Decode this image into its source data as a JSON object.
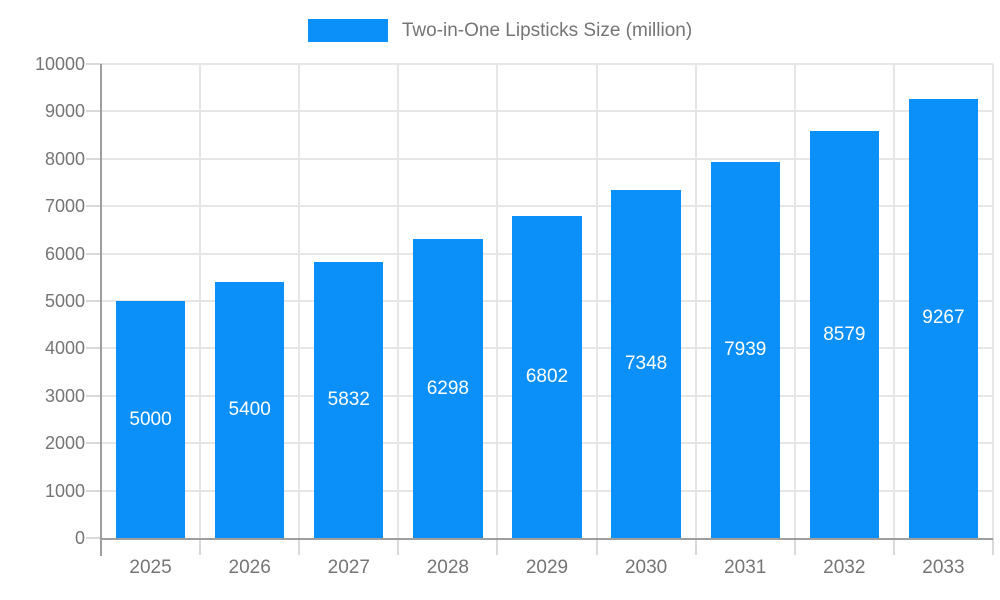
{
  "legend": {
    "label": "Two-in-One Lipsticks Size (million)"
  },
  "chart_data": {
    "type": "bar",
    "title": "Two-in-One Lipsticks Size (million)",
    "categories": [
      "2025",
      "2026",
      "2027",
      "2028",
      "2029",
      "2030",
      "2031",
      "2032",
      "2033"
    ],
    "values": [
      5000,
      5400,
      5832,
      6298,
      6802,
      7348,
      7939,
      8579,
      9267
    ],
    "xlabel": "",
    "ylabel": "",
    "ylim": [
      0,
      10000
    ],
    "ytick_step": 1000,
    "ytick_labels": [
      "0",
      "1000",
      "2000",
      "3000",
      "4000",
      "5000",
      "6000",
      "7000",
      "8000",
      "9000",
      "10000"
    ],
    "grid": true,
    "legend_position": "top-center",
    "bar_color": "#0a90f8",
    "bar_label_color": "#ffffff",
    "axis_text_color": "#757575",
    "grid_color": "#e6e6e6",
    "axis_line_color": "#9e9e9e",
    "background_color": "#ffffff"
  }
}
